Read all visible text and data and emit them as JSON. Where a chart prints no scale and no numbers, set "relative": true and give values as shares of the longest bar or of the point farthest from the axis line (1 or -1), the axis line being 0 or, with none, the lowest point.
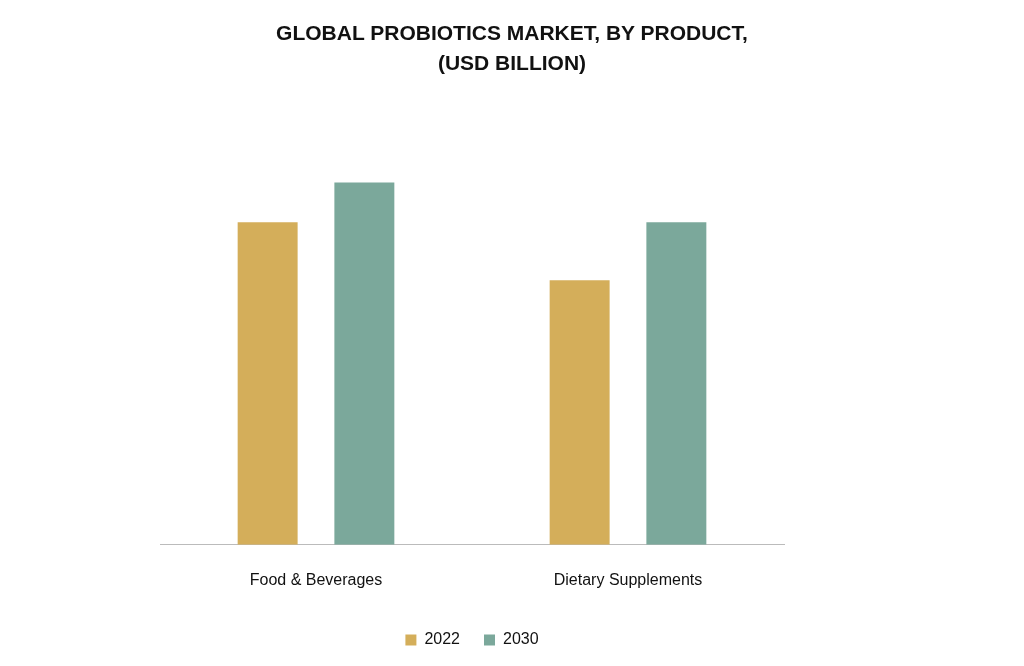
{
  "chart_data": {
    "type": "bar",
    "title": "GLOBAL PROBIOTICS MARKET, BY PRODUCT, (USD BILLION)",
    "categories": [
      "Food & Beverages",
      "Dietary Supplements"
    ],
    "series": [
      {
        "name": "2022",
        "color": "#d4ae5a",
        "values": [
          0.89,
          0.73
        ]
      },
      {
        "name": "2030",
        "color": "#7ba89b",
        "values": [
          1,
          0.89
        ]
      }
    ],
    "relative": true,
    "legend": "bottom"
  }
}
